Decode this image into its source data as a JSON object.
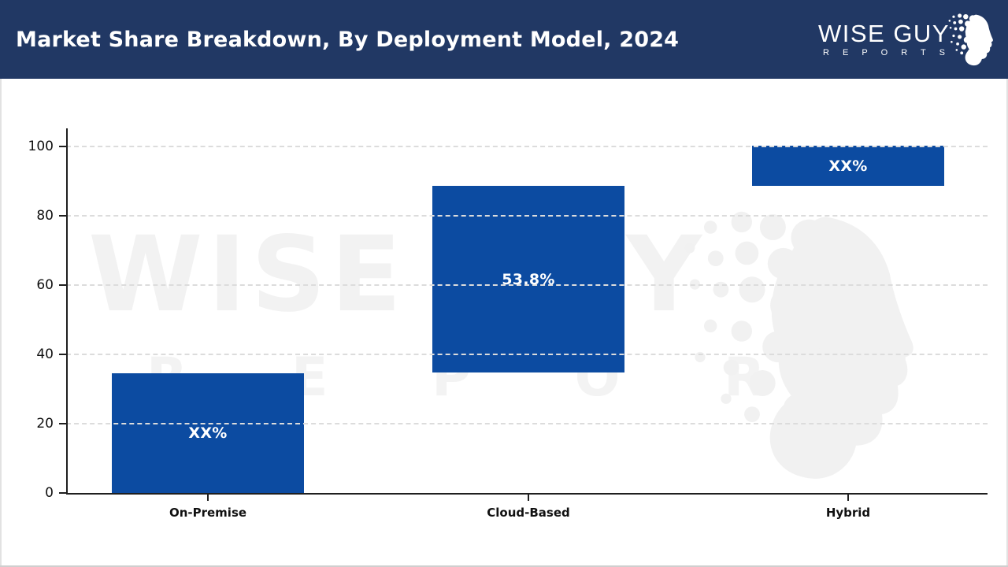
{
  "header": {
    "title": "Market Share Breakdown, By Deployment Model, 2024",
    "bg_color": "#213864",
    "logo": {
      "line1": "WISE GUY",
      "line2": "R E P O R T S",
      "head_icon": "dotted-head-profile"
    }
  },
  "watermark": {
    "line1": "WISE GUY",
    "line2": "R E P O R T S",
    "head_icon": "dotted-head-profile",
    "color": "#f2f2f2"
  },
  "chart_data": {
    "type": "bar",
    "subtype": "floating-segment (waterfall-style market share)",
    "title": "Market Share Breakdown, By Deployment Model, 2024",
    "categories": [
      "On-Premise",
      "Cloud-Based",
      "Hybrid"
    ],
    "segments": [
      {
        "category": "On-Premise",
        "start": 0,
        "end": 34.6,
        "label": "XX%"
      },
      {
        "category": "Cloud-Based",
        "start": 34.8,
        "end": 88.6,
        "label": "53.8%",
        "value": 53.8
      },
      {
        "category": "Hybrid",
        "start": 88.6,
        "end": 100.2,
        "label": "XX%"
      }
    ],
    "yticks": [
      0,
      20,
      40,
      60,
      80,
      100
    ],
    "ylim": [
      0,
      105
    ],
    "xlabel": "",
    "ylabel": "",
    "bar_color": "#0c4ba1",
    "grid": "horizontal-dashed",
    "gridline_color": "#dcdcdc",
    "legend_position": "none"
  }
}
